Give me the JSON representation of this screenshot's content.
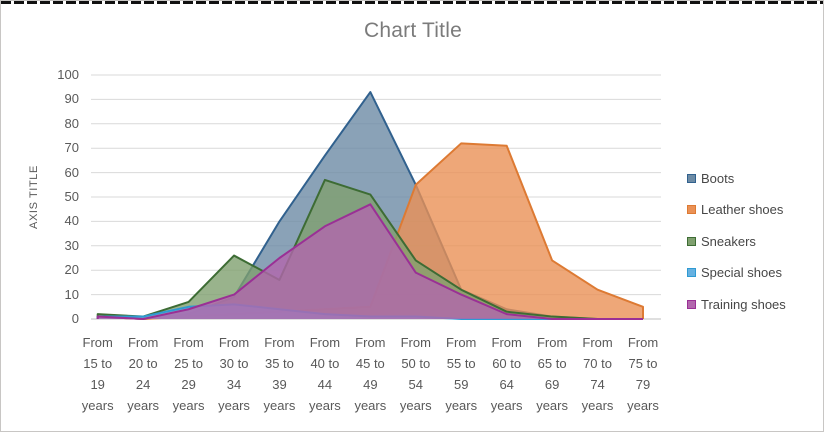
{
  "window": {
    "selection_border_color": "#111111",
    "chart_border_color": "#c8c6c4",
    "background": "#ffffff"
  },
  "chart_data": {
    "type": "area",
    "title": "Chart Title",
    "xlabel": "",
    "ylabel": "AXIS TITLE",
    "ylim": [
      0,
      100
    ],
    "ytick_step": 10,
    "ytick_labels": [
      "100",
      "90",
      "80",
      "70",
      "60",
      "50",
      "40",
      "30",
      "20",
      "10",
      "0"
    ],
    "grid": true,
    "gridline_color": "#d9d9d9",
    "axis_line_color": "#bfbfbf",
    "tick_label_color": "#595959",
    "legend_position": "right",
    "categories": [
      "From 15 to 19 years",
      "From 20 to 24 years",
      "From 25 to 29 years",
      "From 30 to 34 years",
      "From 35 to 39 years",
      "From 40 to 44 years",
      "From 45 to 49 years",
      "From 50 to 54 years",
      "From 55 to 59 years",
      "From 60 to 64 years",
      "From 65 to 69 years",
      "From 70 to 74 years",
      "From 75 to 79 years"
    ],
    "category_tick_lines": [
      [
        "From",
        "15 to",
        "19",
        "years"
      ],
      [
        "From",
        "20 to",
        "24",
        "years"
      ],
      [
        "From",
        "25 to",
        "29",
        "years"
      ],
      [
        "From",
        "30 to",
        "34",
        "years"
      ],
      [
        "From",
        "35 to",
        "39",
        "years"
      ],
      [
        "From",
        "40 to",
        "44",
        "years"
      ],
      [
        "From",
        "45 to",
        "49",
        "years"
      ],
      [
        "From",
        "50 to",
        "54",
        "years"
      ],
      [
        "From",
        "55 to",
        "59",
        "years"
      ],
      [
        "From",
        "60 to",
        "64",
        "years"
      ],
      [
        "From",
        "65 to",
        "69",
        "years"
      ],
      [
        "From",
        "70 to",
        "74",
        "years"
      ],
      [
        "From",
        "75 to",
        "79",
        "years"
      ]
    ],
    "series": [
      {
        "name": "Boots",
        "values": [
          1,
          0,
          2,
          9,
          40,
          67,
          93,
          55,
          12,
          4,
          1,
          0,
          0
        ],
        "line": "#31618e",
        "fill": "#6d8ba5"
      },
      {
        "name": "Leather shoes",
        "values": [
          1,
          0,
          1,
          2,
          3,
          4,
          5,
          55,
          72,
          71,
          24,
          12,
          5
        ],
        "line": "#dd7a33",
        "fill": "#ea9156"
      },
      {
        "name": "Sneakers",
        "values": [
          2,
          1,
          7,
          26,
          16,
          57,
          51,
          24,
          12,
          3,
          1,
          0,
          0
        ],
        "line": "#3d6c34",
        "fill": "#7fa06f"
      },
      {
        "name": "Special shoes",
        "values": [
          1,
          1,
          5,
          6,
          4,
          2,
          1,
          1,
          0,
          0,
          0,
          0,
          0
        ],
        "line": "#2f9ad2",
        "fill": "#66b1e1"
      },
      {
        "name": "Training shoes",
        "values": [
          1,
          0,
          4,
          10,
          25,
          38,
          47,
          19,
          10,
          2,
          0,
          0,
          0
        ],
        "line": "#9a3095",
        "fill": "#b267ad"
      }
    ]
  }
}
